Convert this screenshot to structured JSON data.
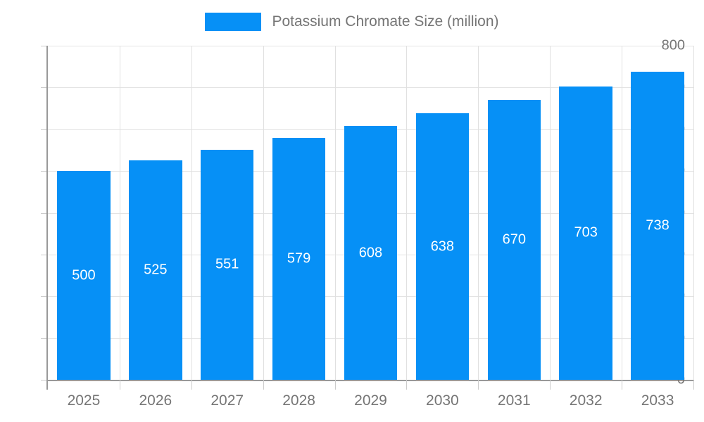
{
  "legend": {
    "label": "Potassium Chromate Size (million)"
  },
  "colors": {
    "bar": "#0690f6",
    "axis": "#999999",
    "grid_horizontal": "#e3e3e3",
    "grid_vertical": "#e0e0e0",
    "tick": "#cccccc",
    "axis_text": "#757575",
    "bar_value_text": "#ffffff"
  },
  "chart_data": {
    "type": "bar",
    "title": "Potassium Chromate Size (million)",
    "categories": [
      "2025",
      "2026",
      "2027",
      "2028",
      "2029",
      "2030",
      "2031",
      "2032",
      "2033"
    ],
    "values": [
      500,
      525,
      551,
      579,
      608,
      638,
      670,
      703,
      738
    ],
    "xlabel": "",
    "ylabel": "",
    "ylim": [
      0,
      800
    ],
    "yticks": [
      0,
      100,
      200,
      300,
      400,
      500,
      600,
      700,
      800
    ],
    "grid": true,
    "legend_position": "top-center",
    "value_labels": "inside-middle"
  }
}
